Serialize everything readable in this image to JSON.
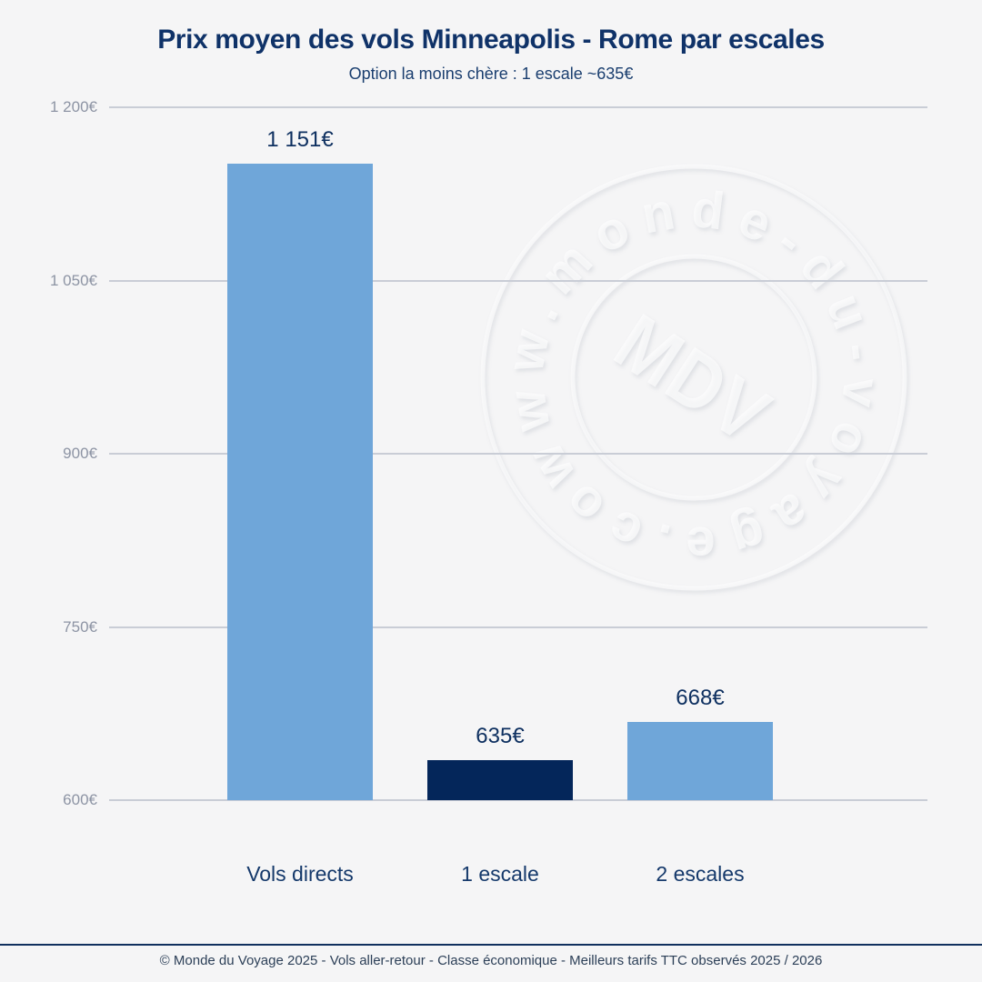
{
  "header": {
    "title": "Prix moyen des vols Minneapolis - Rome par escales",
    "subtitle": "Option la moins chère : 1 escale ~635€"
  },
  "chart_data": {
    "type": "bar",
    "categories": [
      "Vols directs",
      "1 escale",
      "2 escales"
    ],
    "values": [
      1151,
      635,
      668
    ],
    "value_labels": [
      "1 151€",
      "635€",
      "668€"
    ],
    "bar_colors": [
      "#6fa6d9",
      "#04265a",
      "#6fa6d9"
    ],
    "highlight_index": 1,
    "title": "Prix moyen des vols Minneapolis - Rome par escales",
    "subtitle": "Option la moins chère : 1 escale ~635€",
    "xlabel": "",
    "ylabel": "",
    "ylim": [
      600,
      1200
    ],
    "y_ticks": [
      {
        "value": 1200,
        "label": "1 200€"
      },
      {
        "value": 1050,
        "label": "1 050€"
      },
      {
        "value": 900,
        "label": "900€"
      },
      {
        "value": 750,
        "label": "750€"
      },
      {
        "value": 600,
        "label": "600€"
      }
    ],
    "grid": true,
    "legend": false
  },
  "watermark": {
    "ring_text": "www.monde-du-voyage.com - ",
    "center_text": "MDV"
  },
  "footer": {
    "text": "© Monde du Voyage 2025 - Vols aller-retour - Classe économique - Meilleurs tarifs TTC observés 2025 / 2026"
  },
  "colors": {
    "background": "#f5f5f6",
    "bar_light_blue": "#6fa6d9",
    "bar_dark_navy": "#04265a",
    "title_navy": "#0f3268",
    "tick_gray": "#8d94a4",
    "gridline": "#c9cdd6",
    "footer_line": "#10305e",
    "watermark_white": "#ffffff"
  }
}
